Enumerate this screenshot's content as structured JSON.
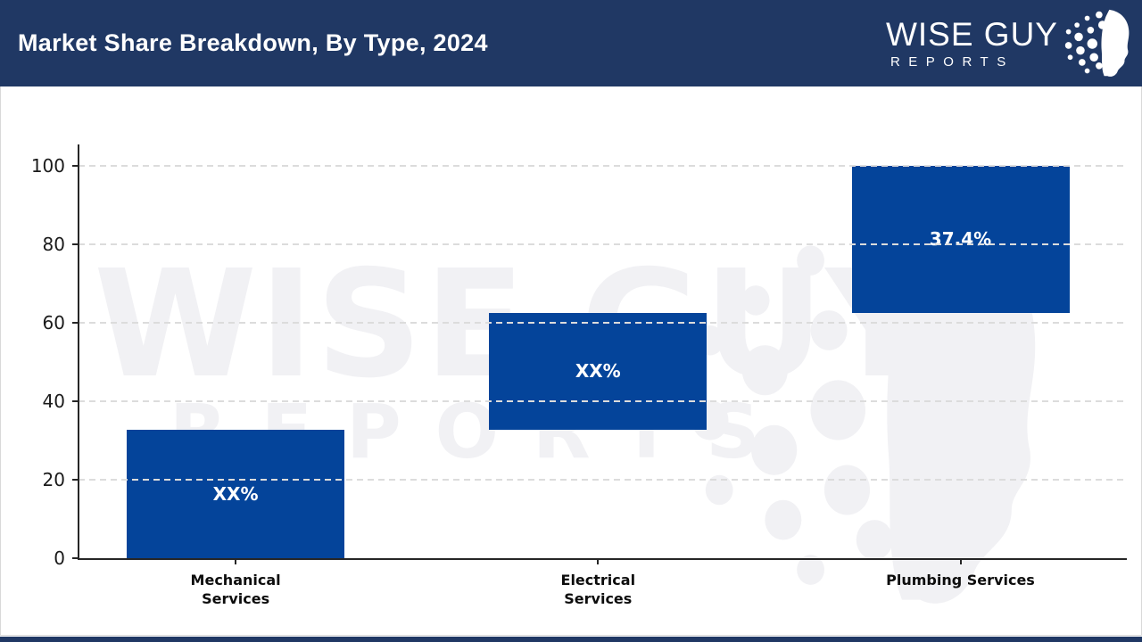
{
  "header": {
    "title": "Market Share Breakdown, By Type, 2024",
    "logo": {
      "wordmark": "WISE GUY",
      "reports": "REPORTS"
    }
  },
  "watermark": {
    "line1": "WISE GUY",
    "line2": "REPORTS"
  },
  "chart_data": {
    "type": "bar",
    "variant": "waterfall-floating-bars",
    "title": "Market Share Breakdown, By Type, 2024",
    "categories": [
      "Mechanical Services",
      "Electrical Services",
      "Plumbing Services"
    ],
    "category_lines": [
      [
        "Mechanical",
        "Services"
      ],
      [
        "Electrical",
        "Services"
      ],
      [
        "Plumbing Services"
      ]
    ],
    "segments": [
      {
        "category": "Mechanical Services",
        "start": 0,
        "end": 32.7,
        "label": "XX%"
      },
      {
        "category": "Electrical Services",
        "start": 32.7,
        "end": 62.6,
        "label": "XX%"
      },
      {
        "category": "Plumbing Services",
        "start": 62.6,
        "end": 100,
        "label": "37.4%"
      }
    ],
    "ylim": [
      0,
      100
    ],
    "yticks": [
      0,
      20,
      40,
      60,
      80,
      100
    ],
    "xlabel": "",
    "ylabel": "",
    "legend": "none",
    "grid": "horizontal-dashed-above-bars",
    "colors": {
      "bar": "#04449A",
      "bar_label": "#FFFFFF",
      "grid": "#DCDCDC",
      "axis": "#262626",
      "header_bg": "#203864",
      "footer_bg": "#203864",
      "watermark": "#F1F1F4"
    }
  }
}
